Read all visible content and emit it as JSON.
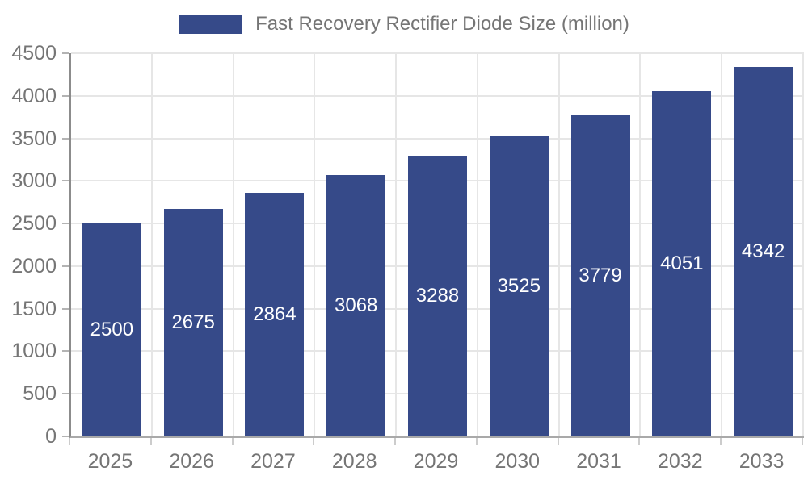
{
  "chart_data": {
    "type": "bar",
    "title": "Fast Recovery Rectifier Diode Size (million)",
    "categories": [
      "2025",
      "2026",
      "2027",
      "2028",
      "2029",
      "2030",
      "2031",
      "2032",
      "2033"
    ],
    "values": [
      2500,
      2675,
      2864,
      3068,
      3288,
      3525,
      3779,
      4051,
      4342
    ],
    "xlabel": "",
    "ylabel": "",
    "ylim": [
      0,
      4500
    ],
    "yticks": [
      0,
      500,
      1000,
      1500,
      2000,
      2500,
      3000,
      3500,
      4000,
      4500
    ],
    "grid": true,
    "legend_position": "top-center",
    "value_labels": "inside-center-white",
    "colors": {
      "bar": "#364a89",
      "bar_value_text": "#ffffff",
      "axis_text": "#757575",
      "gridline": "#e6e6e6",
      "y_axis_line": "#8c8c8c",
      "baseline": "#a9a9a9",
      "background": "#ffffff"
    }
  }
}
